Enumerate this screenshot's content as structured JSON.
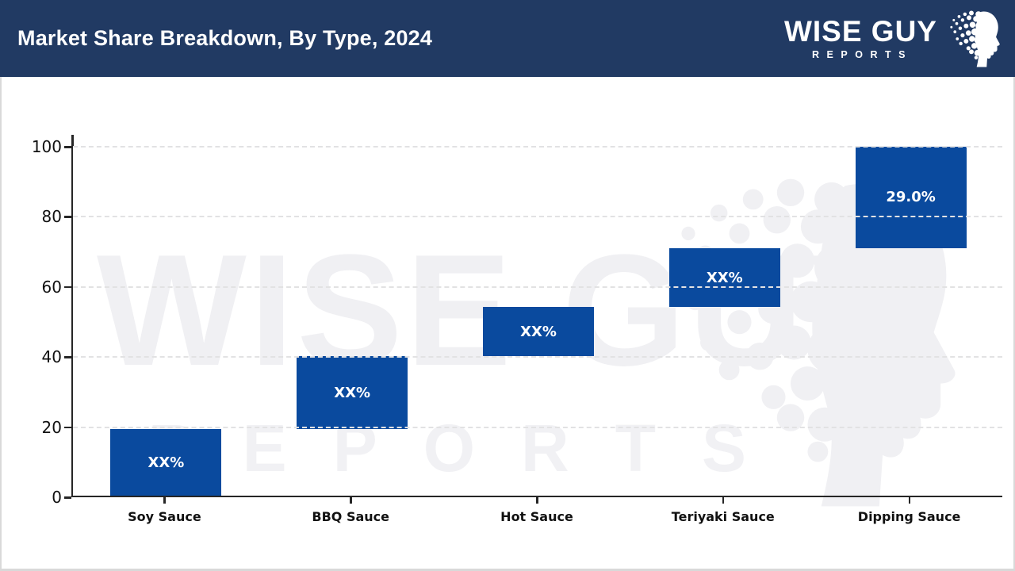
{
  "header": {
    "title": "Market Share Breakdown, By Type, 2024",
    "background_color": "#213a63",
    "logo": {
      "line1": "WISE GUY",
      "line2": "REPORTS"
    }
  },
  "watermark": {
    "line1": "WISE GUY",
    "line2": "REPORTS"
  },
  "chart_data": {
    "type": "bar",
    "subtype": "waterfall-floating-bars",
    "title": "Market Share Breakdown, By Type, 2024",
    "categories": [
      "Soy Sauce",
      "BBQ Sauce",
      "Hot Sauce",
      "Teriyaki Sauce",
      "Dipping Sauce"
    ],
    "series": [
      {
        "name": "Market share (%)",
        "segment_start": [
          0,
          19,
          40,
          54,
          71
        ],
        "segment_end": [
          19,
          40,
          54,
          71,
          100
        ],
        "segment_size_estimated": [
          19,
          21,
          14,
          17,
          29
        ]
      }
    ],
    "bar_labels": [
      "XX%",
      "XX%",
      "XX%",
      "XX%",
      "29.0%"
    ],
    "xlabel": "",
    "ylabel": "",
    "ylim": [
      0,
      100
    ],
    "yticks": [
      0,
      20,
      40,
      60,
      80,
      100
    ],
    "grid": "horizontal-dashed",
    "legend": "none",
    "bar_color": "#0a4a9e",
    "label_color": "#ffffff"
  }
}
